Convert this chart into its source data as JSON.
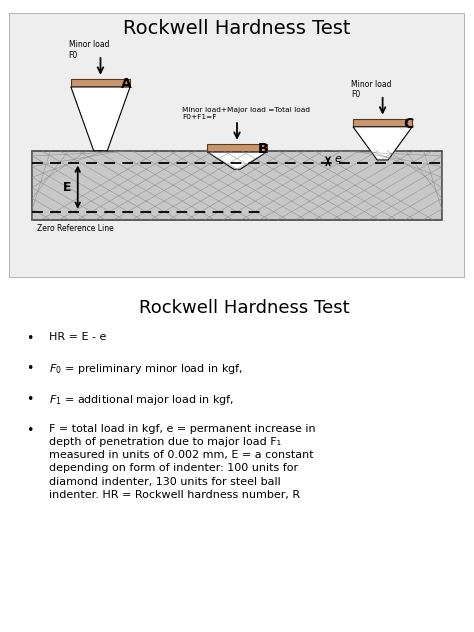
{
  "title_top": "Rockwell Hardness Test",
  "title_bottom": "Rockwell Hardness Test",
  "bg_color": "#ffffff",
  "diagram_bg": "#eeeeee",
  "indenter_fill": "#c8956c",
  "material_fill": "#cccccc",
  "minor_load_left": "Minor load\nF0",
  "minor_load_right": "Minor load\nF0",
  "major_load_text": "Minor load+Major load =Total load\nF0+F1=F",
  "zero_ref_text": "Zero Reference Line",
  "label_A": "A",
  "label_B": "B",
  "label_C": "C",
  "label_E": "E",
  "label_e": "e",
  "bullet1": "HR = E - e",
  "bullet2_pre": "F",
  "bullet2_sub": "0",
  "bullet2_post": " = preliminary minor load in kgf,",
  "bullet3_pre": "F",
  "bullet3_sub": "1",
  "bullet3_post": " = additional major load in kgf,",
  "bullet4_line1": "F = total load in kgf, e = permanent increase in",
  "bullet4_line2": "depth of penetration due to major load F",
  "bullet4_sub2": "1",
  "bullet4_line3": "measured in units of 0.002 mm, E = a constant",
  "bullet4_line4": "depending on form of indenter: 100 units for",
  "bullet4_line5": "diamond indenter, 130 units for steel ball",
  "bullet4_line6": "indenter. HR = Rockwell hardness number, R"
}
